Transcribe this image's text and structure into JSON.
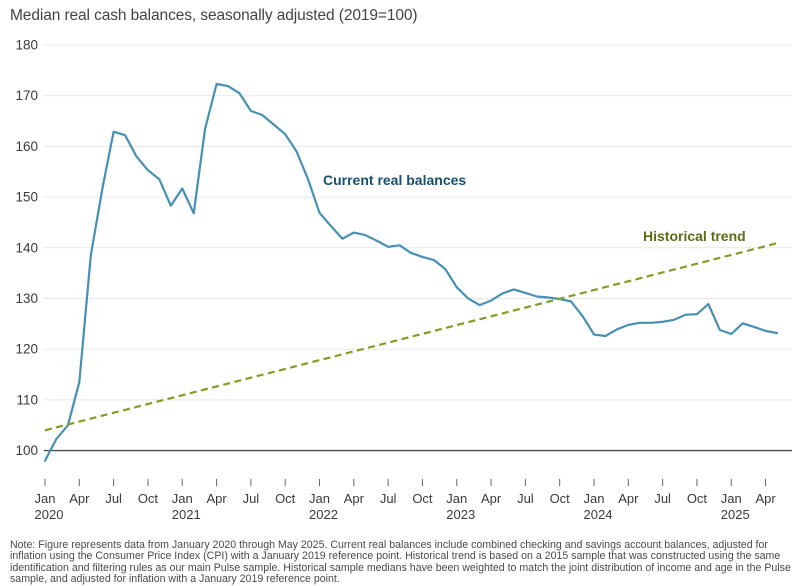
{
  "title": "Median real cash balances, seasonally adjusted (2019=100)",
  "note": "Note: Figure represents data from January 2020 through May 2025. Current real balances include combined checking and savings account balances, adjusted for inflation using the Consumer Price Index (CPI) with a January 2019 reference point. Historical trend is based on a 2015 sample that was constructed using the same identification and filtering rules as our main Pulse sample. Historical sample medians have been weighted to match the joint distribution of income and age in the Pulse sample, and adjusted for inflation with a January 2019 reference point.",
  "colors": {
    "current_line": "#4690b4",
    "trend_line": "#7f9e23",
    "current_label": "#17506e",
    "trend_label": "#5e6b13",
    "gridline": "#e8e8e8",
    "baseline": "#4d4d4d",
    "axis_text": "#3a3a3a",
    "tick_mark": "#666666"
  },
  "chart_data": {
    "type": "line",
    "title": "Median real cash balances, seasonally adjusted (2019=100)",
    "x_start": "2020-01",
    "x_end": "2025-05",
    "x_frequency": "monthly",
    "grid": "horizontal",
    "legend_position": "inline-labels",
    "y_axis": {
      "ticks": [
        100,
        110,
        120,
        130,
        140,
        150,
        160,
        170,
        180
      ],
      "baseline": 100,
      "ylim": [
        95,
        183
      ]
    },
    "x_ticks": [
      {
        "month": "Jan",
        "year": "2020"
      },
      {
        "month": "Apr"
      },
      {
        "month": "Jul"
      },
      {
        "month": "Oct"
      },
      {
        "month": "Jan",
        "year": "2021"
      },
      {
        "month": "Apr"
      },
      {
        "month": "Jul"
      },
      {
        "month": "Oct"
      },
      {
        "month": "Jan",
        "year": "2022"
      },
      {
        "month": "Apr"
      },
      {
        "month": "Jul"
      },
      {
        "month": "Oct"
      },
      {
        "month": "Jan",
        "year": "2023"
      },
      {
        "month": "Apr"
      },
      {
        "month": "Jul"
      },
      {
        "month": "Oct"
      },
      {
        "month": "Jan",
        "year": "2024"
      },
      {
        "month": "Apr"
      },
      {
        "month": "Jul"
      },
      {
        "month": "Oct"
      },
      {
        "month": "Jan",
        "year": "2025"
      },
      {
        "month": "Apr"
      }
    ],
    "series": [
      {
        "name": "Current real balances",
        "style": "solid",
        "color": "#4690b4",
        "values": [
          98.0,
          102.3,
          105.0,
          113.5,
          138.5,
          151.5,
          162.9,
          162.2,
          158.0,
          155.3,
          153.5,
          148.3,
          151.7,
          146.8,
          163.5,
          172.3,
          171.9,
          170.5,
          167.0,
          166.2,
          164.3,
          162.4,
          159.0,
          153.5,
          146.9,
          144.3,
          141.8,
          143.0,
          142.5,
          141.4,
          140.2,
          140.5,
          139.0,
          138.2,
          137.6,
          135.8,
          132.2,
          130.0,
          128.7,
          129.6,
          131.0,
          131.8,
          131.1,
          130.4,
          130.2,
          129.9,
          129.4,
          126.5,
          122.9,
          122.6,
          123.9,
          124.8,
          125.2,
          125.2,
          125.4,
          125.8,
          126.8,
          126.9,
          128.9,
          123.8,
          123.0,
          125.1,
          124.4,
          123.6,
          123.2
        ]
      },
      {
        "name": "Historical trend",
        "style": "dashed",
        "color": "#7f9e23",
        "start_value": 104.0,
        "end_value": 140.9
      }
    ]
  }
}
